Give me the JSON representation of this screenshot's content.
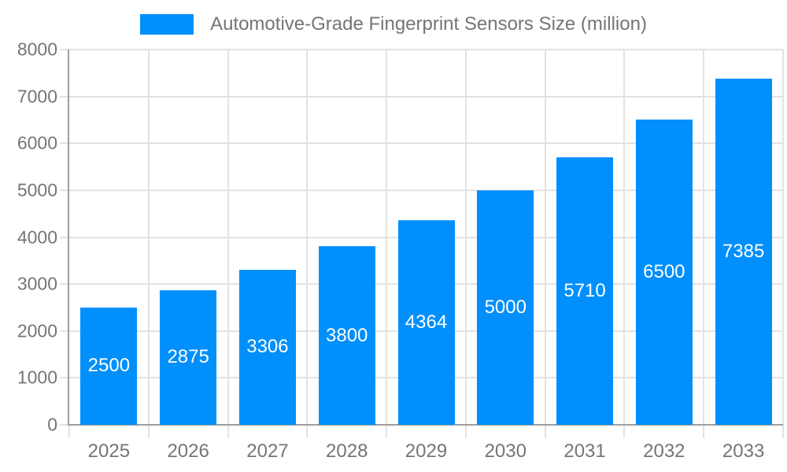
{
  "legend": {
    "label": "Automotive-Grade Fingerprint Sensors Size (million)"
  },
  "chart_data": {
    "type": "bar",
    "title": "Automotive-Grade Fingerprint Sensors Size (million)",
    "categories": [
      "2025",
      "2026",
      "2027",
      "2028",
      "2029",
      "2030",
      "2031",
      "2032",
      "2033"
    ],
    "values": [
      2500,
      2875,
      3306,
      3800,
      4364,
      5000,
      5710,
      6500,
      7385
    ],
    "xlabel": "",
    "ylabel": "",
    "ylim": [
      0,
      8000
    ],
    "ytick_step": 1000,
    "ytick_labels": [
      "0",
      "1000",
      "2000",
      "3000",
      "4000",
      "5000",
      "6000",
      "7000",
      "8000"
    ],
    "grid": true,
    "legend_position": "top",
    "bar_value_labels_inside": true,
    "colors": {
      "bar": "#008ffb",
      "bar_label_text": "#ffffff",
      "axis_text": "#757575",
      "grid_line": "#e2e2e2",
      "axis_line": "#9e9e9e",
      "background": "#ffffff"
    }
  }
}
